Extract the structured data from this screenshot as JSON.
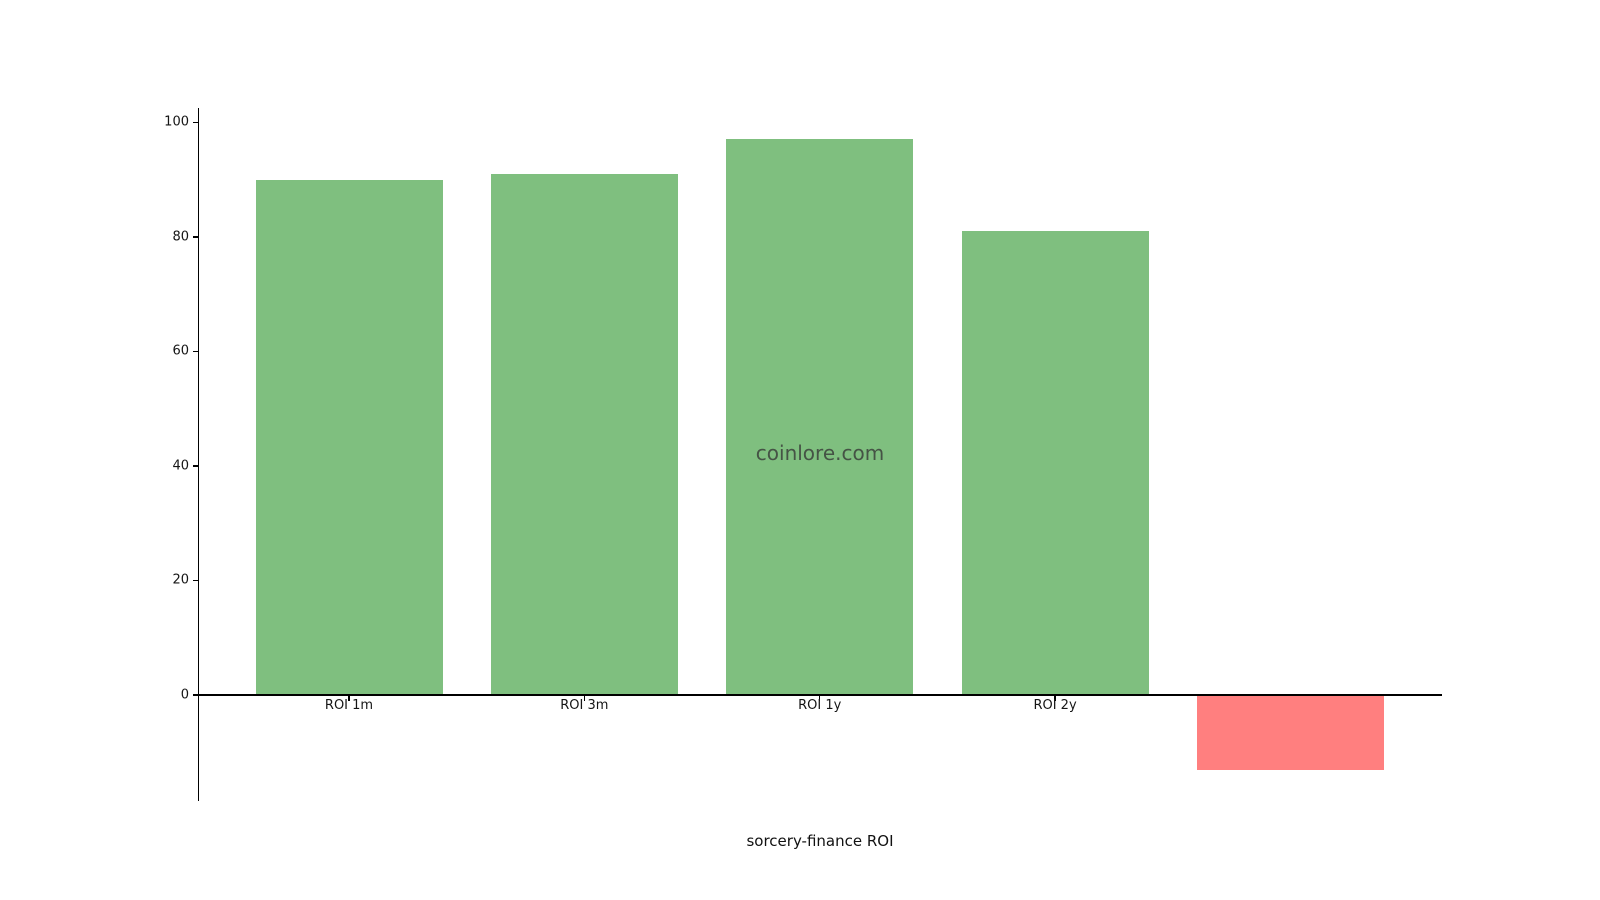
{
  "watermark": "coinlore.com",
  "chart_data": {
    "type": "bar",
    "title": "sorcery-finance ROI",
    "categories": [
      "ROI 1m",
      "ROI 3m",
      "ROI 1y",
      "ROI 2y",
      ""
    ],
    "values": [
      90,
      91,
      97,
      81,
      -13
    ],
    "yticks": [
      0,
      20,
      40,
      60,
      80,
      100
    ],
    "ylim": [
      -18.5,
      102.5
    ],
    "xlabel": "sorcery-finance ROI",
    "ylabel": "",
    "grid": false,
    "legend": null,
    "colors": {
      "positive_bar": "#7fbf7f",
      "negative_bar": "#ff7f7f",
      "axis": "#000000",
      "watermark_text": "#343434"
    }
  }
}
